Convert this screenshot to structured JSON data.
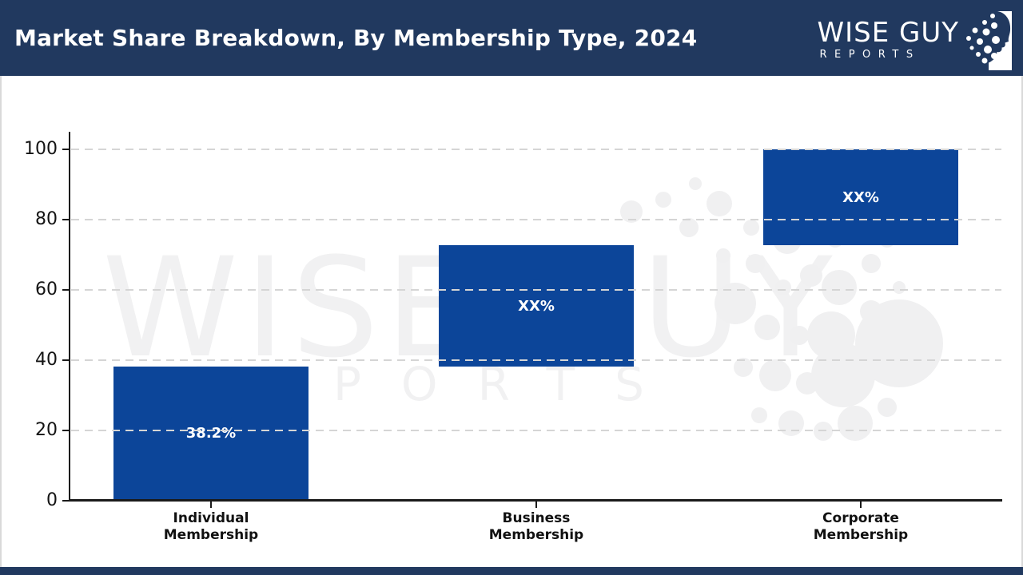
{
  "header": {
    "title": "Market Share Breakdown, By Membership Type, 2024",
    "brand_line1": "WISE GUY",
    "brand_line2": "REPORTS"
  },
  "watermark": {
    "line1": "WISE GUY",
    "line2": "REPORTS"
  },
  "chart_data": {
    "type": "bar",
    "subtype": "waterfall-percentage",
    "title": "Market Share Breakdown, By Membership Type, 2024",
    "categories": [
      "Individual Membership",
      "Business Membership",
      "Corporate Membership"
    ],
    "category_lines": [
      [
        "Individual",
        "Membership"
      ],
      [
        "Business",
        "Membership"
      ],
      [
        "Corporate",
        "Membership"
      ]
    ],
    "series": [
      {
        "name": "Individual Membership",
        "start": 0,
        "end": 38.2,
        "label": "38.2%"
      },
      {
        "name": "Business Membership",
        "start": 38.2,
        "end": 72.7,
        "label": "XX%"
      },
      {
        "name": "Corporate Membership",
        "start": 72.7,
        "end": 100,
        "label": "XX%"
      }
    ],
    "xlabel": "",
    "ylabel": "",
    "yticks": [
      0,
      20,
      40,
      60,
      80,
      100
    ],
    "ylim": [
      0,
      107
    ],
    "grid": "horizontal-dashed",
    "legend": "none"
  },
  "colors": {
    "header_bg": "#21395F",
    "footer_bg": "#21395F",
    "bar": "#0C4599",
    "grid": "#D5D5D5",
    "axis": "#1A1A1A",
    "watermark": "#F1F1F2",
    "title_text": "#FFFFFF",
    "bar_label_text": "#FFFFFF"
  }
}
